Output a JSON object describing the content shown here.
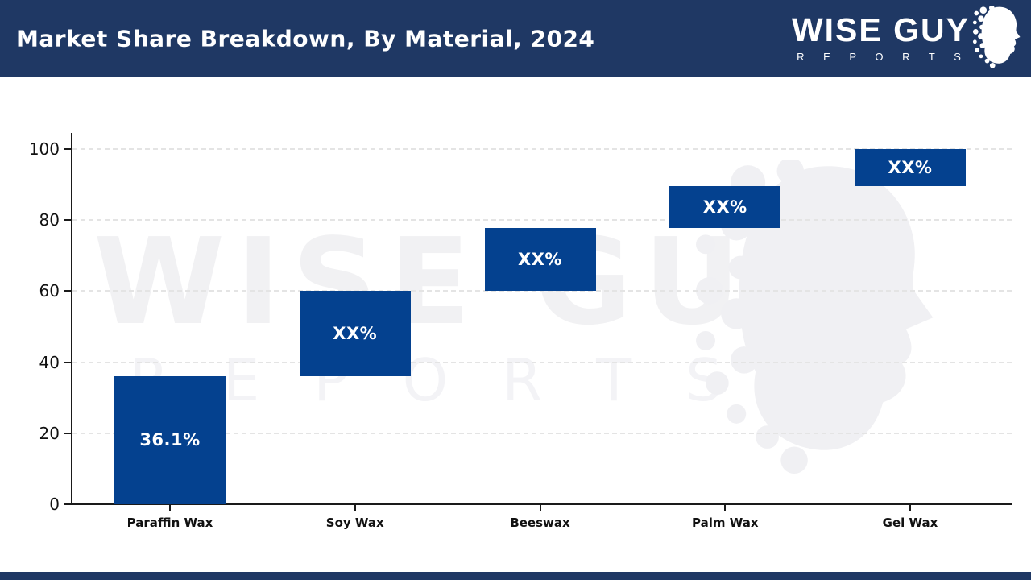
{
  "header": {
    "title": "Market Share Breakdown, By Material, 2024",
    "logo": {
      "line1": "WISE GUY",
      "line2": "R E P O R T S"
    }
  },
  "watermark": {
    "line1": "WISE GUY",
    "line2": "R E P O R T S"
  },
  "colors": {
    "navy": "#1f3864",
    "bar": "#04418f",
    "grid": "#e4e4e4",
    "axis": "#1a1a1a",
    "watermark": "#f1f1f3"
  },
  "chart_data": {
    "type": "bar",
    "subtype": "waterfall",
    "title": "Market Share Breakdown, By Material, 2024",
    "categories": [
      "Paraffin Wax",
      "Soy Wax",
      "Beeswax",
      "Palm Wax",
      "Gel Wax"
    ],
    "values": [
      36.1,
      23.9,
      17.8,
      11.8,
      10.4
    ],
    "segment_start": [
      0,
      36.1,
      60.0,
      77.8,
      89.6
    ],
    "segment_end": [
      36.1,
      60.0,
      77.8,
      89.6,
      100.0
    ],
    "bar_labels": [
      "36.1%",
      "XX%",
      "XX%",
      "XX%",
      "XX%"
    ],
    "xlabel": "",
    "ylabel": "",
    "yticks": [
      0,
      20,
      40,
      60,
      80,
      100
    ],
    "ylim": [
      0,
      105
    ],
    "grid": "horizontal-dashed",
    "legend": "none",
    "bar_color": "#04418f"
  }
}
